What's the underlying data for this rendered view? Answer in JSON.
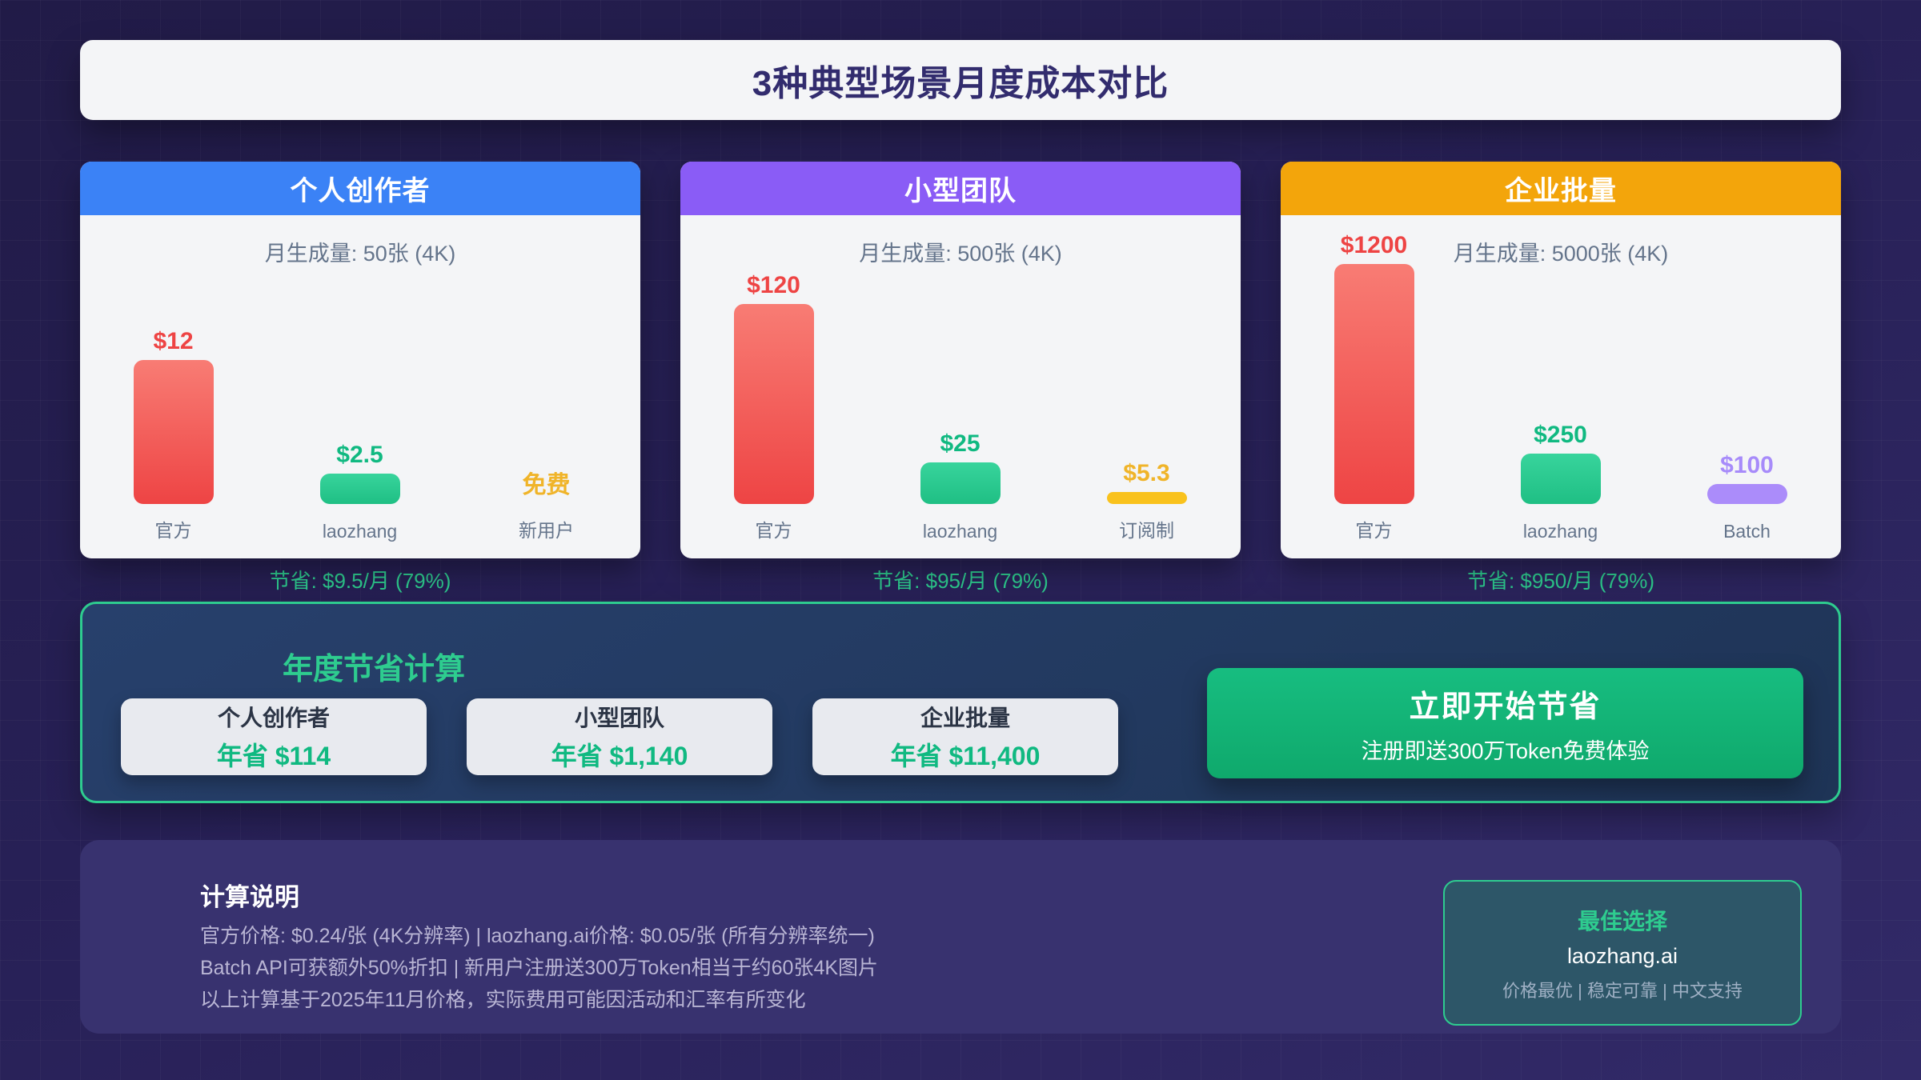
{
  "title": "3种典型场景月度成本对比",
  "chart_data": [
    {
      "type": "bar",
      "scenario": "个人创作者",
      "header_color": "#3b82f6",
      "subtitle": "月生成量: 50张 (4K)",
      "categories": [
        "官方",
        "laozhang",
        "新用户"
      ],
      "values": [
        12,
        2.5,
        0
      ],
      "value_labels": [
        "$12",
        "$2.5",
        "免费"
      ],
      "label_colors": [
        "#ee4444",
        "#10b981",
        "#f0b429"
      ],
      "bar_colors": [
        [
          "#f87c74",
          "#ee4444"
        ],
        [
          "#38d49c",
          "#1fbf84"
        ],
        [
          "#f9c21d",
          "#f9c21d"
        ]
      ],
      "savings": "节省: $9.5/月 (79%)",
      "ylim": [
        0,
        12
      ]
    },
    {
      "type": "bar",
      "scenario": "小型团队",
      "header_color": "#8a5cf6",
      "subtitle": "月生成量: 500张 (4K)",
      "categories": [
        "官方",
        "laozhang",
        "订阅制"
      ],
      "values": [
        120,
        25,
        5.3
      ],
      "value_labels": [
        "$120",
        "$25",
        "$5.3"
      ],
      "label_colors": [
        "#ee4444",
        "#10b981",
        "#f0b429"
      ],
      "bar_colors": [
        [
          "#f87c74",
          "#ee4444"
        ],
        [
          "#38d49c",
          "#1fbf84"
        ],
        [
          "#f9c21d",
          "#f9c21d"
        ]
      ],
      "savings": "节省: $95/月 (79%)",
      "ylim": [
        0,
        120
      ]
    },
    {
      "type": "bar",
      "scenario": "企业批量",
      "header_color": "#f3a50b",
      "subtitle": "月生成量: 5000张 (4K)",
      "categories": [
        "官方",
        "laozhang",
        "Batch"
      ],
      "values": [
        1200,
        250,
        100
      ],
      "value_labels": [
        "$1200",
        "$250",
        "$100"
      ],
      "label_colors": [
        "#ee4444",
        "#10b981",
        "#a78bfa"
      ],
      "bar_colors": [
        [
          "#f87c74",
          "#ee4444"
        ],
        [
          "#38d49c",
          "#1fbf84"
        ],
        [
          "#ab8cfa",
          "#ab8cfa"
        ]
      ],
      "savings": "节省: $950/月 (79%)",
      "ylim": [
        0,
        1200
      ]
    }
  ],
  "annual": {
    "title": "年度节省计算",
    "items": [
      {
        "name": "个人创作者",
        "savings": "年省 $114"
      },
      {
        "name": "小型团队",
        "savings": "年省 $1,140"
      },
      {
        "name": "企业批量",
        "savings": "年省 $11,400"
      }
    ],
    "cta": {
      "title": "立即开始节省",
      "subtitle": "注册即送300万Token免费体验"
    },
    "accent_color": "#2ecc8f"
  },
  "notes": {
    "title": "计算说明",
    "lines": [
      "官方价格: $0.24/张 (4K分辨率) | laozhang.ai价格: $0.05/张 (所有分辨率统一)",
      "Batch API可获额外50%折扣 | 新用户注册送300万Token相当于约60张4K图片",
      "以上计算基于2025年11月价格，实际费用可能因活动和汇率有所变化"
    ],
    "best": {
      "badge": "最佳选择",
      "name": "laozhang.ai",
      "tagline": "价格最优 | 稳定可靠 | 中文支持"
    }
  }
}
